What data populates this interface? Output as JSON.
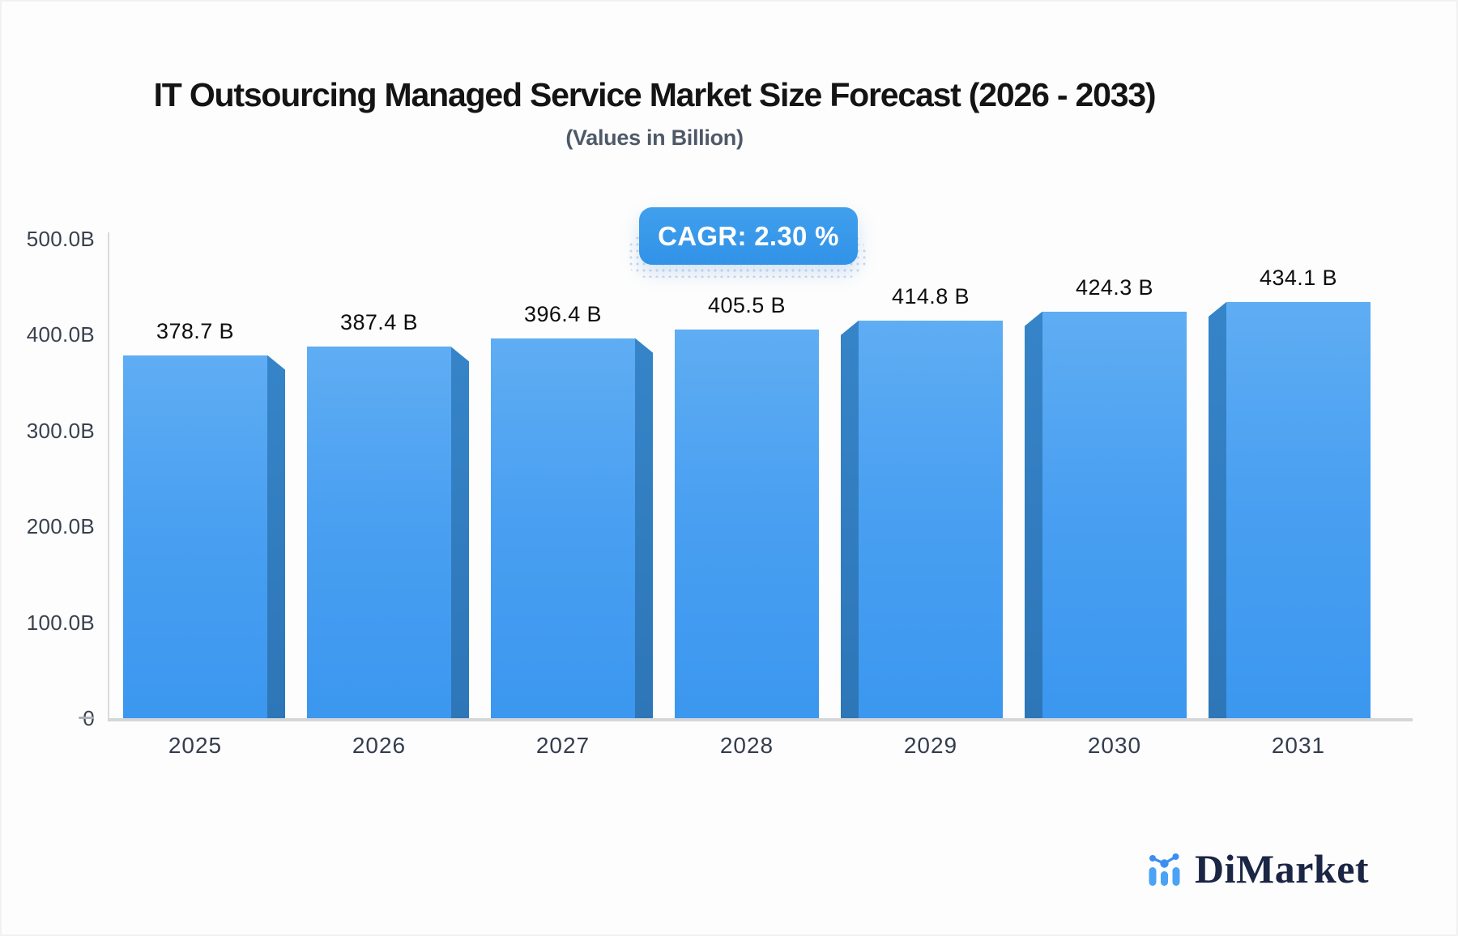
{
  "header": {
    "title": "IT Outsourcing Managed Service Market Size Forecast (2026 - 2033)",
    "subtitle": "(Values in Billion)"
  },
  "cagr_badge": {
    "label": "CAGR: 2.30 %"
  },
  "brand": {
    "name": "DiMarket",
    "icon": "bar-chart-with-trendline-icon"
  },
  "colors": {
    "bar_face_top": "#5fadf3",
    "bar_face_bottom": "#3b97ef",
    "bar_side": "#2d76b8",
    "badge_blue": "#3597ea",
    "axis_line": "#d5d6d8",
    "tick_text": "#39414e",
    "value_text": "#0e0e0e",
    "brand_navy": "#1b2544",
    "brand_blue": "#4ba3f5"
  },
  "chart_data": {
    "type": "bar",
    "title": "IT Outsourcing Managed Service Market Size Forecast (2026 - 2033)",
    "subtitle": "(Values in Billion)",
    "categories": [
      "2025",
      "2026",
      "2027",
      "2028",
      "2029",
      "2030",
      "2031"
    ],
    "values": [
      378.7,
      387.4,
      396.4,
      405.5,
      414.8,
      424.3,
      434.1
    ],
    "value_labels": [
      "378.7 B",
      "387.4 B",
      "396.4 B",
      "405.5 B",
      "414.8 B",
      "424.3 B",
      "434.1 B"
    ],
    "unit": "Billion",
    "cagr": "2.30 %",
    "ylim": [
      0,
      500
    ],
    "y_ticks": [
      "500.0B",
      "400.0B",
      "300.0B",
      "200.0B",
      "100.0B",
      "0"
    ],
    "xlabel": "",
    "ylabel": "",
    "grid": false,
    "legend": null,
    "bar_3d_perspective": "bars left of center show right side face, bars right of center show left side face"
  }
}
